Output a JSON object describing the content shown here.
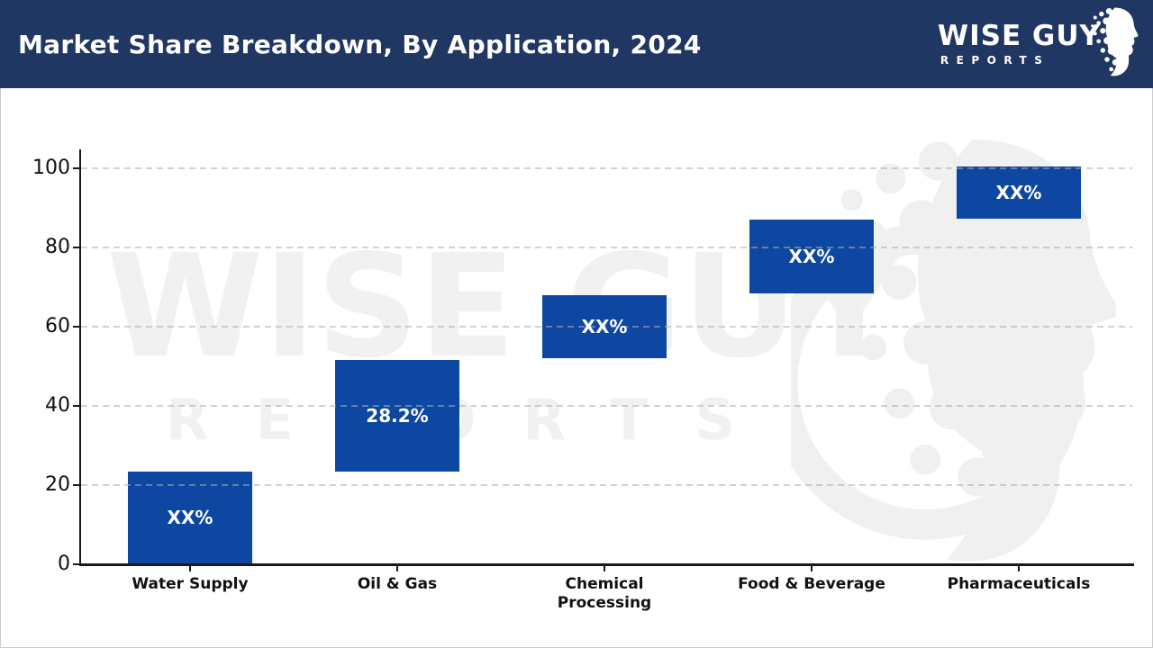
{
  "header": {
    "title": "Market Share Breakdown, By Application, 2024",
    "brand_line1": "WISE GUY",
    "brand_line2": "REPORTS"
  },
  "watermark": {
    "line1": "WISE GUY",
    "line2": "REPORTS"
  },
  "colors": {
    "header_bg": "#203763",
    "bar_blue": "#0d47a1",
    "grid_gray": "#d9d9d9",
    "axis_black": "#1a1a1a",
    "watermark_gray": "#f1f1f2",
    "bar_label_text": "#ffffff"
  },
  "chart_data": {
    "type": "bar",
    "subtype": "floating-waterfall",
    "title": "Market Share Breakdown, By Application, 2024",
    "categories": [
      "Water Supply",
      "Oil & Gas",
      "Chemical Processing",
      "Food & Beverage",
      "Pharmaceuticals"
    ],
    "tick_labels": [
      "Water Supply",
      "Oil & Gas",
      "Chemical\nProcessing",
      "Food & Beverage",
      "Pharmaceuticals"
    ],
    "segments": [
      {
        "category": "Water Supply",
        "start": 0,
        "end": 23.5,
        "label": "XX%"
      },
      {
        "category": "Oil & Gas",
        "start": 23.5,
        "end": 51.7,
        "label": "28.2%",
        "value": 28.2
      },
      {
        "category": "Chemical Processing",
        "start": 52,
        "end": 68,
        "label": "XX%"
      },
      {
        "category": "Food & Beverage",
        "start": 68.4,
        "end": 87,
        "label": "XX%"
      },
      {
        "category": "Pharmaceuticals",
        "start": 87.3,
        "end": 100.5,
        "label": "XX%"
      }
    ],
    "ylim": [
      0,
      105
    ],
    "yticks": [
      0,
      20,
      40,
      60,
      80,
      100
    ],
    "grid": "horizontal-dashed",
    "legend": "none",
    "bar_color": "#0d47a1"
  }
}
